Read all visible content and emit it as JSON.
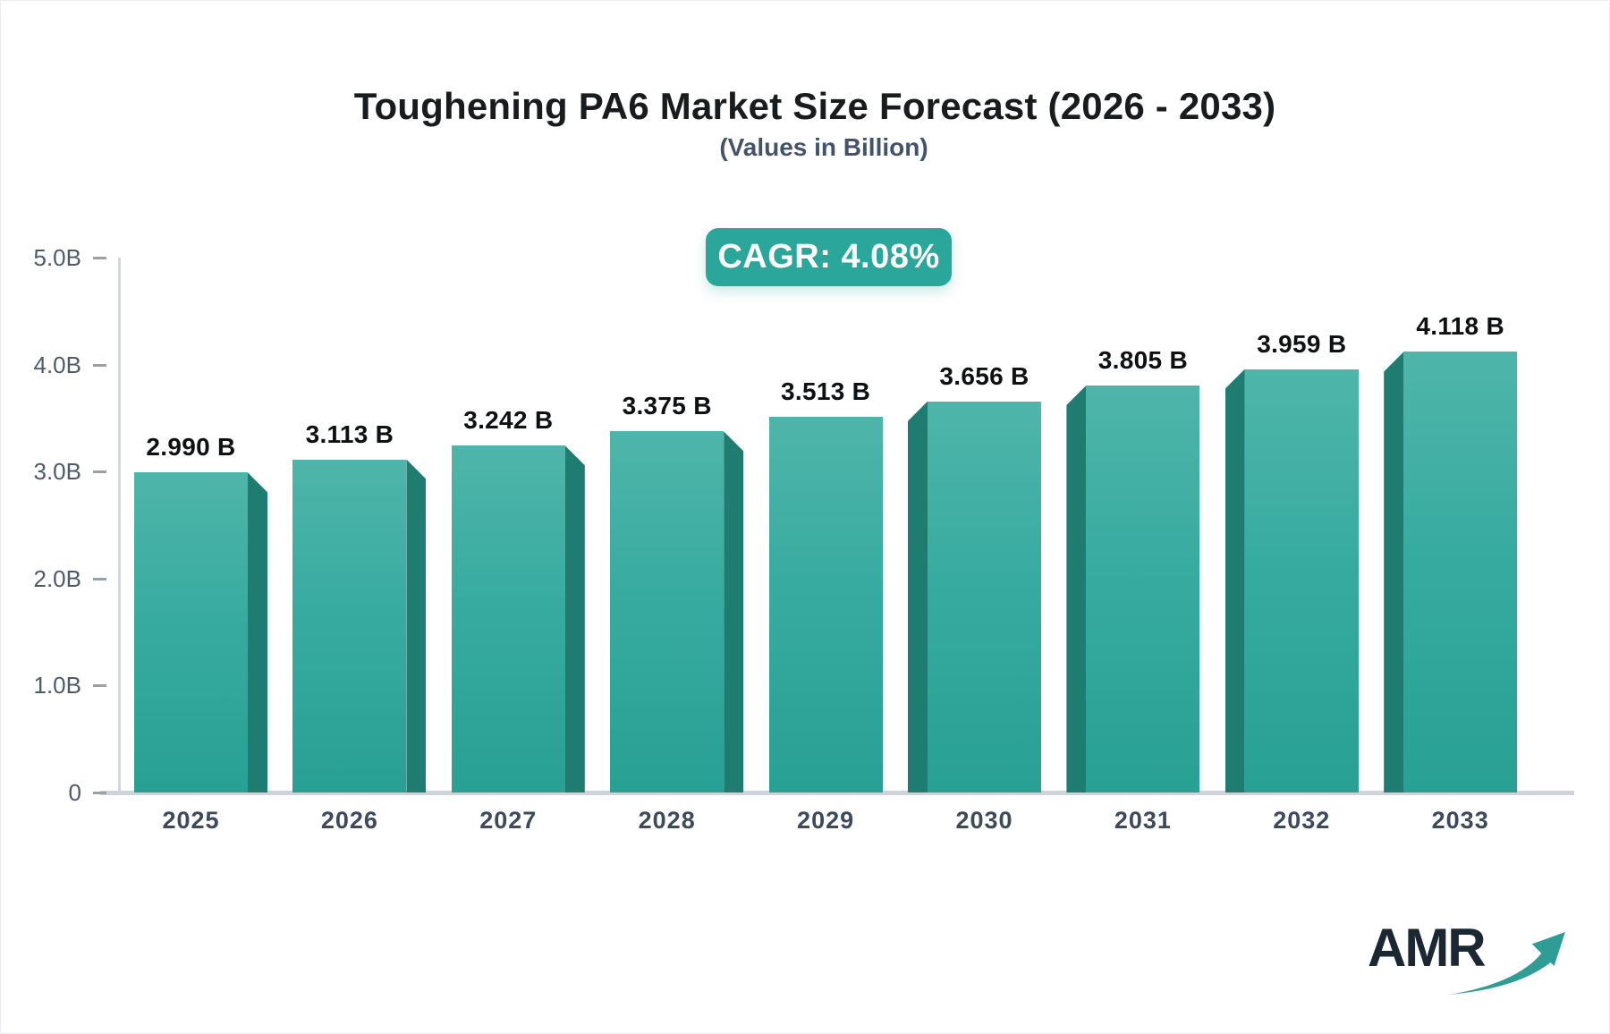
{
  "title": "Toughening PA6 Market Size Forecast (2026 - 2033)",
  "subtitle": "(Values in Billion)",
  "cagr_badge": "CAGR: 4.08%",
  "logo": {
    "text": "AMR",
    "icon": "growth-arrow-icon"
  },
  "colors": {
    "accent_teal": "#2AA79A",
    "bar_gradient_top": "#4FB5AA",
    "bar_gradient_bottom": "#28A093",
    "bar_side_shadow": "#1E7C70",
    "axis_line": "#D3D7DD",
    "tick_mark": "#99A1AB",
    "y_label_text": "#4E5A68",
    "x_label_text": "#3D4A5C",
    "title_text": "#191C1F",
    "subtitle_text": "#43536A",
    "badge_bg": "#2AA79A",
    "badge_text": "#FFFFFF",
    "logo_text": "#1B2733",
    "logo_arrow": "#2F9D95"
  },
  "chart_data": {
    "type": "bar",
    "title": "Toughening PA6 Market Size Forecast (2026 - 2033)",
    "subtitle": "(Values in Billion)",
    "annotation": "CAGR: 4.08%",
    "categories": [
      "2025",
      "2026",
      "2027",
      "2028",
      "2029",
      "2030",
      "2031",
      "2032",
      "2033"
    ],
    "values": [
      2.99,
      3.113,
      3.242,
      3.375,
      3.513,
      3.656,
      3.805,
      3.959,
      4.118
    ],
    "value_labels": [
      "2.990 B",
      "3.113 B",
      "3.242 B",
      "3.375 B",
      "3.513 B",
      "3.656 B",
      "3.805 B",
      "3.959 B",
      "4.118 B"
    ],
    "xlabel": "",
    "ylabel": "",
    "ylim": [
      0,
      5.0
    ],
    "y_ticks": [
      {
        "label": "5.0B",
        "value": 5.0
      },
      {
        "label": "4.0B",
        "value": 4.0
      },
      {
        "label": "3.0B",
        "value": 3.0
      },
      {
        "label": "2.0B",
        "value": 2.0
      },
      {
        "label": "1.0B",
        "value": 1.0
      },
      {
        "label": "0",
        "value": 0.0
      }
    ],
    "grid": false,
    "legend_position": "none",
    "bar_style": "3d-beveled, perspective toward center bar (2029)"
  }
}
